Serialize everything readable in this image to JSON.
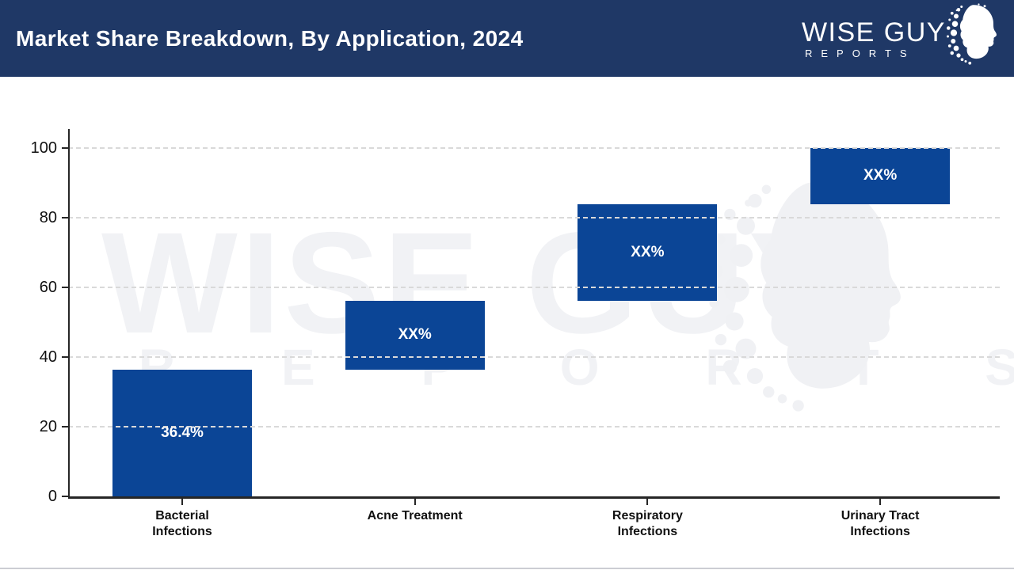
{
  "header": {
    "title": "Market Share Breakdown, By Application, 2024",
    "background_color": "#1f3866",
    "logo": {
      "line1": "WISE GUY",
      "line2": "REPORTS",
      "face_icon": "dotted-head-profile"
    }
  },
  "watermark": {
    "line1": "WISE GUY",
    "line2": "R E P O R T S"
  },
  "chart_data": {
    "type": "bar",
    "variant": "waterfall",
    "title": "Market Share Breakdown, By Application, 2024",
    "categories": [
      "Bacterial\nInfections",
      "Acne Treatment",
      "Respiratory\nInfections",
      "Urinary Tract\nInfections"
    ],
    "series": [
      {
        "name": "Market share (%)",
        "segments": [
          {
            "category": "Bacterial Infections",
            "start": 0,
            "end": 36.4,
            "label": "36.4%"
          },
          {
            "category": "Acne Treatment",
            "start": 36.4,
            "end": 56.2,
            "label": "XX%"
          },
          {
            "category": "Respiratory Infections",
            "start": 56.2,
            "end": 83.9,
            "label": "XX%"
          },
          {
            "category": "Urinary Tract Infections",
            "start": 83.9,
            "end": 100,
            "label": "XX%"
          }
        ]
      }
    ],
    "ylim": [
      0,
      100
    ],
    "yticks": [
      0,
      20,
      40,
      60,
      80,
      100
    ],
    "grid": "horizontal-dashed",
    "legend": "none",
    "colors": {
      "bar": "#0b4596",
      "bar_label": "#ffffff",
      "axis": "#262626",
      "tick_label": "#111111",
      "gridline": "#d9d9d9"
    }
  }
}
